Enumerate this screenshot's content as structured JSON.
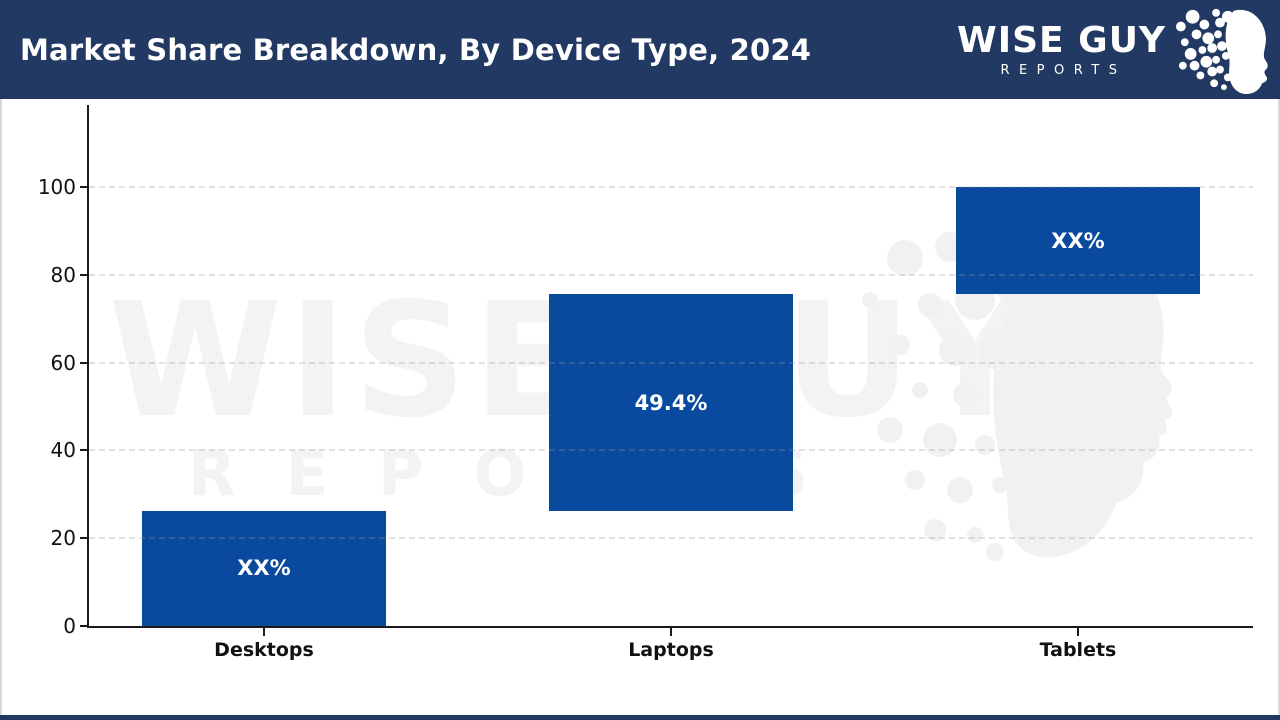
{
  "header": {
    "title": "Market Share Breakdown, By Device Type, 2024"
  },
  "logo": {
    "line1": "WISE GUY",
    "line2": "REPORTS",
    "face_icon": "dotted-head-profile"
  },
  "watermark": {
    "line1": "WISE GUY",
    "line2": "REPORTS"
  },
  "colors": {
    "header_bg": "#223a63",
    "bar_fill": "#0a4a9e",
    "bar_label": "#ffffff",
    "axis": "#1a1a1a",
    "watermark": "#f3f3f3"
  },
  "chart_data": {
    "type": "bar",
    "subtype": "waterfall",
    "title": "Market Share Breakdown, By Device Type, 2024",
    "xlabel": "",
    "ylabel": "",
    "categories": [
      "Desktops",
      "Laptops",
      "Tablets"
    ],
    "segments": [
      {
        "category": "Desktops",
        "start": 0,
        "end": 26.2,
        "display_label": "XX%"
      },
      {
        "category": "Laptops",
        "start": 26.2,
        "end": 75.6,
        "display_label": "49.4%"
      },
      {
        "category": "Tablets",
        "start": 75.6,
        "end": 100,
        "display_label": "XX%"
      }
    ],
    "ylim": [
      0,
      100
    ],
    "yticks": [
      0,
      20,
      40,
      60,
      80,
      100
    ],
    "grid": "dashed-horizontal",
    "legend": "none"
  }
}
